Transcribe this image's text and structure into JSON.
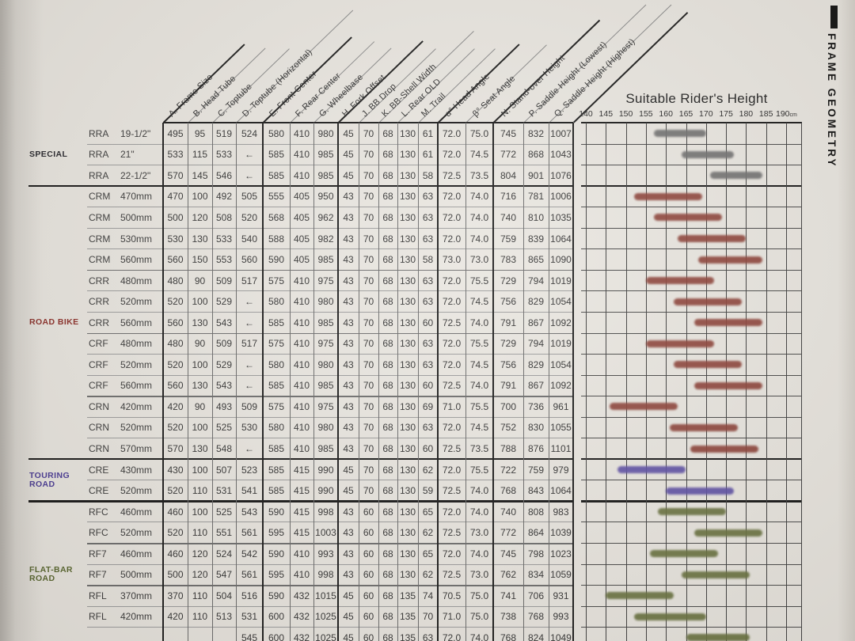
{
  "side_label": "FRAME GEOMETRY",
  "chart": {
    "title": "Suitable Rider's Height",
    "unit": "cm",
    "ticks": [
      140,
      145,
      150,
      155,
      160,
      165,
      170,
      175,
      180,
      185,
      190
    ]
  },
  "column_headers": [
    "A. Frame Size",
    "B. Head Tube",
    "C. Toptube",
    "D. Toptube (Horizontal)",
    "E. Front Center",
    "F. Rear Center",
    "G. Wheelbase",
    "H. Fork Offset",
    "J. BB Drop",
    "K. BB-Shell Width",
    "L. Rear OLD",
    "M. Trail",
    "α° Head Angle",
    "β° Seat Angle",
    "N. Stand-over Height",
    "P. Saddle Height (Lowest)",
    "Q. Saddle Height (Highest)"
  ],
  "sections": [
    {
      "name": "SPECIAL",
      "label_lines": [
        "SPECIAL"
      ],
      "label_color": "#26262c",
      "bar_color": "#6f6f6f",
      "rows": [
        {
          "model": "RRA",
          "size": "19-1/2\"",
          "values": [
            "495",
            "95",
            "519",
            "524",
            "580",
            "410",
            "980",
            "45",
            "70",
            "68",
            "130",
            "61",
            "72.0",
            "75.0",
            "745",
            "832",
            "1007"
          ],
          "rider_height": [
            157,
            170
          ]
        },
        {
          "model": "RRA",
          "size": "21\"",
          "values": [
            "533",
            "115",
            "533",
            "←",
            "585",
            "410",
            "985",
            "45",
            "70",
            "68",
            "130",
            "61",
            "72.0",
            "74.5",
            "772",
            "868",
            "1043"
          ],
          "rider_height": [
            164,
            177
          ]
        },
        {
          "model": "RRA",
          "size": "22-1/2\"",
          "values": [
            "570",
            "145",
            "546",
            "←",
            "585",
            "410",
            "985",
            "45",
            "70",
            "68",
            "130",
            "58",
            "72.5",
            "73.5",
            "804",
            "901",
            "1076"
          ],
          "rider_height": [
            171,
            184
          ]
        }
      ]
    },
    {
      "name": "ROAD BIKE",
      "label_lines": [
        "ROAD BIKE"
      ],
      "label_color": "#8c2e28",
      "bar_color": "#8c4137",
      "rows": [
        {
          "model": "CRM",
          "size": "470mm",
          "values": [
            "470",
            "100",
            "492",
            "505",
            "555",
            "405",
            "950",
            "43",
            "70",
            "68",
            "130",
            "63",
            "72.0",
            "74.0",
            "716",
            "781",
            "1006"
          ],
          "rider_height": [
            152,
            169
          ]
        },
        {
          "model": "CRM",
          "size": "500mm",
          "values": [
            "500",
            "120",
            "508",
            "520",
            "568",
            "405",
            "962",
            "43",
            "70",
            "68",
            "130",
            "63",
            "72.0",
            "74.0",
            "740",
            "810",
            "1035"
          ],
          "rider_height": [
            157,
            174
          ]
        },
        {
          "model": "CRM",
          "size": "530mm",
          "values": [
            "530",
            "130",
            "533",
            "540",
            "588",
            "405",
            "982",
            "43",
            "70",
            "68",
            "130",
            "63",
            "72.0",
            "74.0",
            "759",
            "839",
            "1064"
          ],
          "rider_height": [
            163,
            180
          ]
        },
        {
          "model": "CRM",
          "size": "560mm",
          "values": [
            "560",
            "150",
            "553",
            "560",
            "590",
            "405",
            "985",
            "43",
            "70",
            "68",
            "130",
            "58",
            "73.0",
            "73.0",
            "783",
            "865",
            "1090"
          ],
          "rider_height": [
            168,
            184
          ]
        },
        {
          "model": "CRR",
          "size": "480mm",
          "subgroup": true,
          "values": [
            "480",
            "90",
            "509",
            "517",
            "575",
            "410",
            "975",
            "43",
            "70",
            "68",
            "130",
            "63",
            "72.0",
            "75.5",
            "729",
            "794",
            "1019"
          ],
          "rider_height": [
            155,
            172
          ]
        },
        {
          "model": "CRR",
          "size": "520mm",
          "values": [
            "520",
            "100",
            "529",
            "←",
            "580",
            "410",
            "980",
            "43",
            "70",
            "68",
            "130",
            "63",
            "72.0",
            "74.5",
            "756",
            "829",
            "1054"
          ],
          "rider_height": [
            162,
            179
          ]
        },
        {
          "model": "CRR",
          "size": "560mm",
          "values": [
            "560",
            "130",
            "543",
            "←",
            "585",
            "410",
            "985",
            "43",
            "70",
            "68",
            "130",
            "60",
            "72.5",
            "74.0",
            "791",
            "867",
            "1092"
          ],
          "rider_height": [
            167,
            184
          ]
        },
        {
          "model": "CRF",
          "size": "480mm",
          "subgroup": true,
          "values": [
            "480",
            "90",
            "509",
            "517",
            "575",
            "410",
            "975",
            "43",
            "70",
            "68",
            "130",
            "63",
            "72.0",
            "75.5",
            "729",
            "794",
            "1019"
          ],
          "rider_height": [
            155,
            172
          ]
        },
        {
          "model": "CRF",
          "size": "520mm",
          "values": [
            "520",
            "100",
            "529",
            "←",
            "580",
            "410",
            "980",
            "43",
            "70",
            "68",
            "130",
            "63",
            "72.0",
            "74.5",
            "756",
            "829",
            "1054"
          ],
          "rider_height": [
            162,
            179
          ]
        },
        {
          "model": "CRF",
          "size": "560mm",
          "values": [
            "560",
            "130",
            "543",
            "←",
            "585",
            "410",
            "985",
            "43",
            "70",
            "68",
            "130",
            "60",
            "72.5",
            "74.0",
            "791",
            "867",
            "1092"
          ],
          "rider_height": [
            167,
            184
          ]
        },
        {
          "model": "CRN",
          "size": "420mm",
          "subgroup": true,
          "values": [
            "420",
            "90",
            "493",
            "509",
            "575",
            "410",
            "975",
            "43",
            "70",
            "68",
            "130",
            "69",
            "71.0",
            "75.5",
            "700",
            "736",
            "961"
          ],
          "rider_height": [
            146,
            163
          ]
        },
        {
          "model": "CRN",
          "size": "520mm",
          "values": [
            "520",
            "100",
            "525",
            "530",
            "580",
            "410",
            "980",
            "43",
            "70",
            "68",
            "130",
            "63",
            "72.0",
            "74.5",
            "752",
            "830",
            "1055"
          ],
          "rider_height": [
            161,
            178
          ]
        },
        {
          "model": "CRN",
          "size": "570mm",
          "values": [
            "570",
            "130",
            "548",
            "←",
            "585",
            "410",
            "985",
            "43",
            "70",
            "68",
            "130",
            "60",
            "72.5",
            "73.5",
            "788",
            "876",
            "1101"
          ],
          "rider_height": [
            166,
            183
          ]
        }
      ]
    },
    {
      "name": "TOURING ROAD",
      "label_lines": [
        "TOURING",
        "ROAD"
      ],
      "label_color": "#4a3b96",
      "bar_color": "#5d4fa5",
      "rows": [
        {
          "model": "CRE",
          "size": "430mm",
          "values": [
            "430",
            "100",
            "507",
            "523",
            "585",
            "415",
            "990",
            "45",
            "70",
            "68",
            "130",
            "62",
            "72.0",
            "75.5",
            "722",
            "759",
            "979"
          ],
          "rider_height": [
            148,
            165
          ]
        },
        {
          "model": "CRE",
          "size": "520mm",
          "values": [
            "520",
            "110",
            "531",
            "541",
            "585",
            "415",
            "990",
            "45",
            "70",
            "68",
            "130",
            "59",
            "72.5",
            "74.0",
            "768",
            "843",
            "1064"
          ],
          "rider_height": [
            160,
            177
          ]
        }
      ]
    },
    {
      "name": "FLAT-BAR ROAD",
      "label_lines": [
        "FLAT-BAR",
        "ROAD"
      ],
      "label_color": "#59672f",
      "bar_color": "#68713e",
      "rows": [
        {
          "model": "RFC",
          "size": "460mm",
          "values": [
            "460",
            "100",
            "525",
            "543",
            "590",
            "415",
            "998",
            "43",
            "60",
            "68",
            "130",
            "65",
            "72.0",
            "74.0",
            "740",
            "808",
            "983"
          ],
          "rider_height": [
            158,
            175
          ]
        },
        {
          "model": "RFC",
          "size": "520mm",
          "values": [
            "520",
            "110",
            "551",
            "561",
            "595",
            "415",
            "1003",
            "43",
            "60",
            "68",
            "130",
            "62",
            "72.5",
            "73.0",
            "772",
            "864",
            "1039"
          ],
          "rider_height": [
            167,
            184
          ]
        },
        {
          "model": "RF7",
          "size": "460mm",
          "subgroup": true,
          "values": [
            "460",
            "120",
            "524",
            "542",
            "590",
            "410",
            "993",
            "43",
            "60",
            "68",
            "130",
            "65",
            "72.0",
            "74.0",
            "745",
            "798",
            "1023"
          ],
          "rider_height": [
            156,
            173
          ]
        },
        {
          "model": "RF7",
          "size": "500mm",
          "values": [
            "500",
            "120",
            "547",
            "561",
            "595",
            "410",
            "998",
            "43",
            "60",
            "68",
            "130",
            "62",
            "72.5",
            "73.0",
            "762",
            "834",
            "1059"
          ],
          "rider_height": [
            164,
            181
          ]
        },
        {
          "model": "RFL",
          "size": "370mm",
          "subgroup": true,
          "values": [
            "370",
            "110",
            "504",
            "516",
            "590",
            "432",
            "1015",
            "45",
            "60",
            "68",
            "135",
            "74",
            "70.5",
            "75.0",
            "741",
            "706",
            "931"
          ],
          "rider_height": [
            145,
            162
          ]
        },
        {
          "model": "RFL",
          "size": "420mm",
          "values": [
            "420",
            "110",
            "513",
            "531",
            "600",
            "432",
            "1025",
            "45",
            "60",
            "68",
            "135",
            "70",
            "71.0",
            "75.0",
            "738",
            "768",
            "993"
          ],
          "rider_height": [
            152,
            170
          ]
        },
        {
          "model": "",
          "size": "",
          "values": [
            "",
            "",
            "",
            "545",
            "600",
            "432",
            "1025",
            "45",
            "60",
            "68",
            "135",
            "63",
            "72.0",
            "74.0",
            "768",
            "824",
            "1049"
          ],
          "rider_height": [
            165,
            181
          ]
        }
      ]
    }
  ]
}
